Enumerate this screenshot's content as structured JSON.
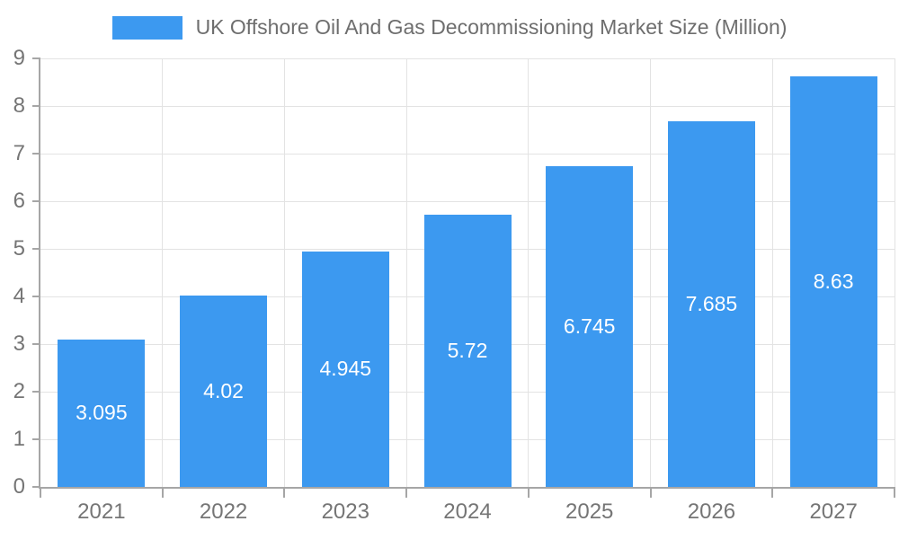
{
  "chart_data": {
    "type": "bar",
    "title": "UK Offshore Oil And Gas Decommissioning Market Size (Million)",
    "categories": [
      "2021",
      "2022",
      "2023",
      "2024",
      "2025",
      "2026",
      "2027"
    ],
    "values": [
      3.095,
      4.02,
      4.945,
      5.72,
      6.745,
      7.685,
      8.63
    ],
    "value_labels": [
      "3.095",
      "4.02",
      "4.945",
      "5.72",
      "6.745",
      "7.685",
      "8.63"
    ],
    "xlabel": "",
    "ylabel": "",
    "ylim": [
      0,
      9
    ],
    "yticks": [
      0,
      1,
      2,
      3,
      4,
      5,
      6,
      7,
      8,
      9
    ],
    "grid": true,
    "legend_position": "top",
    "colors": {
      "bar": "#3c99f0",
      "value_label": "#ffffff",
      "axis_text": "#757575",
      "legend_text": "#6e6e6e",
      "grid_line": "#e3e3e3",
      "axis_line": "#a6a6a6",
      "background": "#ffffff"
    }
  }
}
